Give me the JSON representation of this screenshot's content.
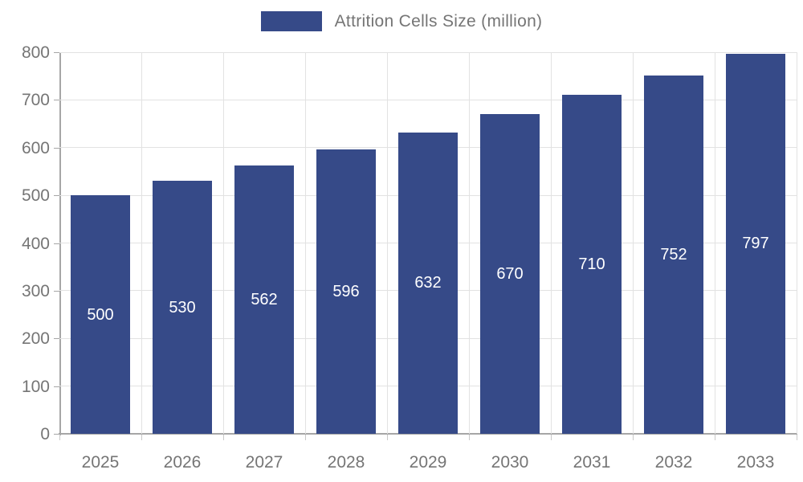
{
  "legend": {
    "label": "Attrition Cells Size (million)"
  },
  "colors": {
    "bar": "#364a88",
    "grid": "#e2e2e2",
    "axis": "#a6a6a6",
    "tick_text": "#757575",
    "value_label": "#ffffff"
  },
  "chart_data": {
    "type": "bar",
    "categories": [
      "2025",
      "2026",
      "2027",
      "2028",
      "2029",
      "2030",
      "2031",
      "2032",
      "2033"
    ],
    "values": [
      500,
      530,
      562,
      596,
      632,
      670,
      710,
      752,
      797
    ],
    "series_name": "Attrition Cells Size (million)",
    "title": "",
    "xlabel": "",
    "ylabel": "",
    "ylim": [
      0,
      800
    ],
    "yticks": [
      0,
      100,
      200,
      300,
      400,
      500,
      600,
      700,
      800
    ],
    "grid": true,
    "legend_position": "top",
    "bar_value_labels": "inside-center"
  }
}
